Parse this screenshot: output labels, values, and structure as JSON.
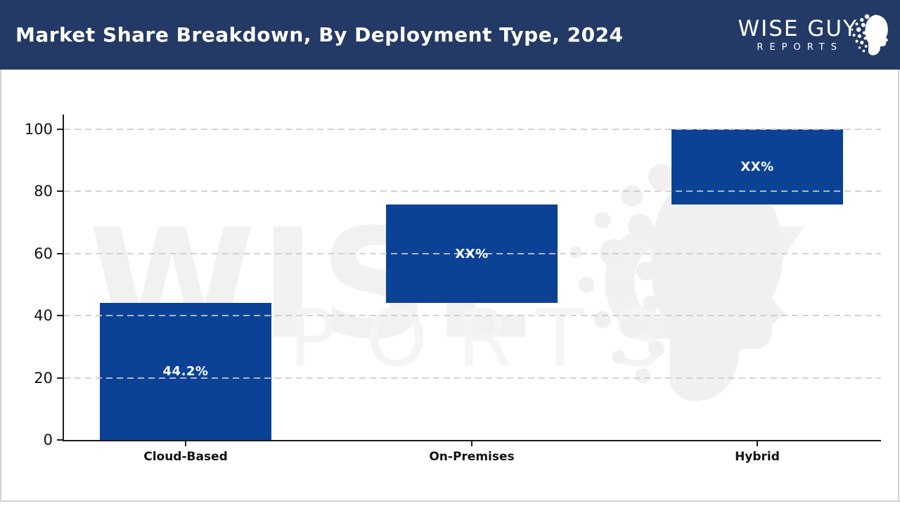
{
  "header": {
    "title": "Market Share Breakdown, By Deployment Type, 2024",
    "bg_color": "#233a66",
    "logo": {
      "line1": "WISE GUY",
      "line2": "REPORTS"
    }
  },
  "watermark": {
    "big_text": "WISE G",
    "big_text_y": "Y",
    "small_text": "REPORTS"
  },
  "chart_data": {
    "type": "bar",
    "subtype": "waterfall",
    "title": "Market Share Breakdown, By Deployment Type, 2024",
    "categories": [
      "Cloud-Based",
      "On-Premises",
      "Hybrid"
    ],
    "segments": [
      {
        "category": "Cloud-Based",
        "label": "44.2%",
        "start": 0,
        "end": 44.2
      },
      {
        "category": "On-Premises",
        "label": "XX%",
        "start": 44.2,
        "end": 75.7
      },
      {
        "category": "Hybrid",
        "label": "XX%",
        "start": 75.7,
        "end": 100
      }
    ],
    "yticks": [
      0,
      20,
      40,
      60,
      80,
      100
    ],
    "ylim": [
      0,
      104.5
    ],
    "grid": "horizontal-dashed",
    "legend": "none",
    "bar_color": "#0b4295",
    "bar_label_color": "#ffffff",
    "axis_color": "#1a1a1a"
  }
}
